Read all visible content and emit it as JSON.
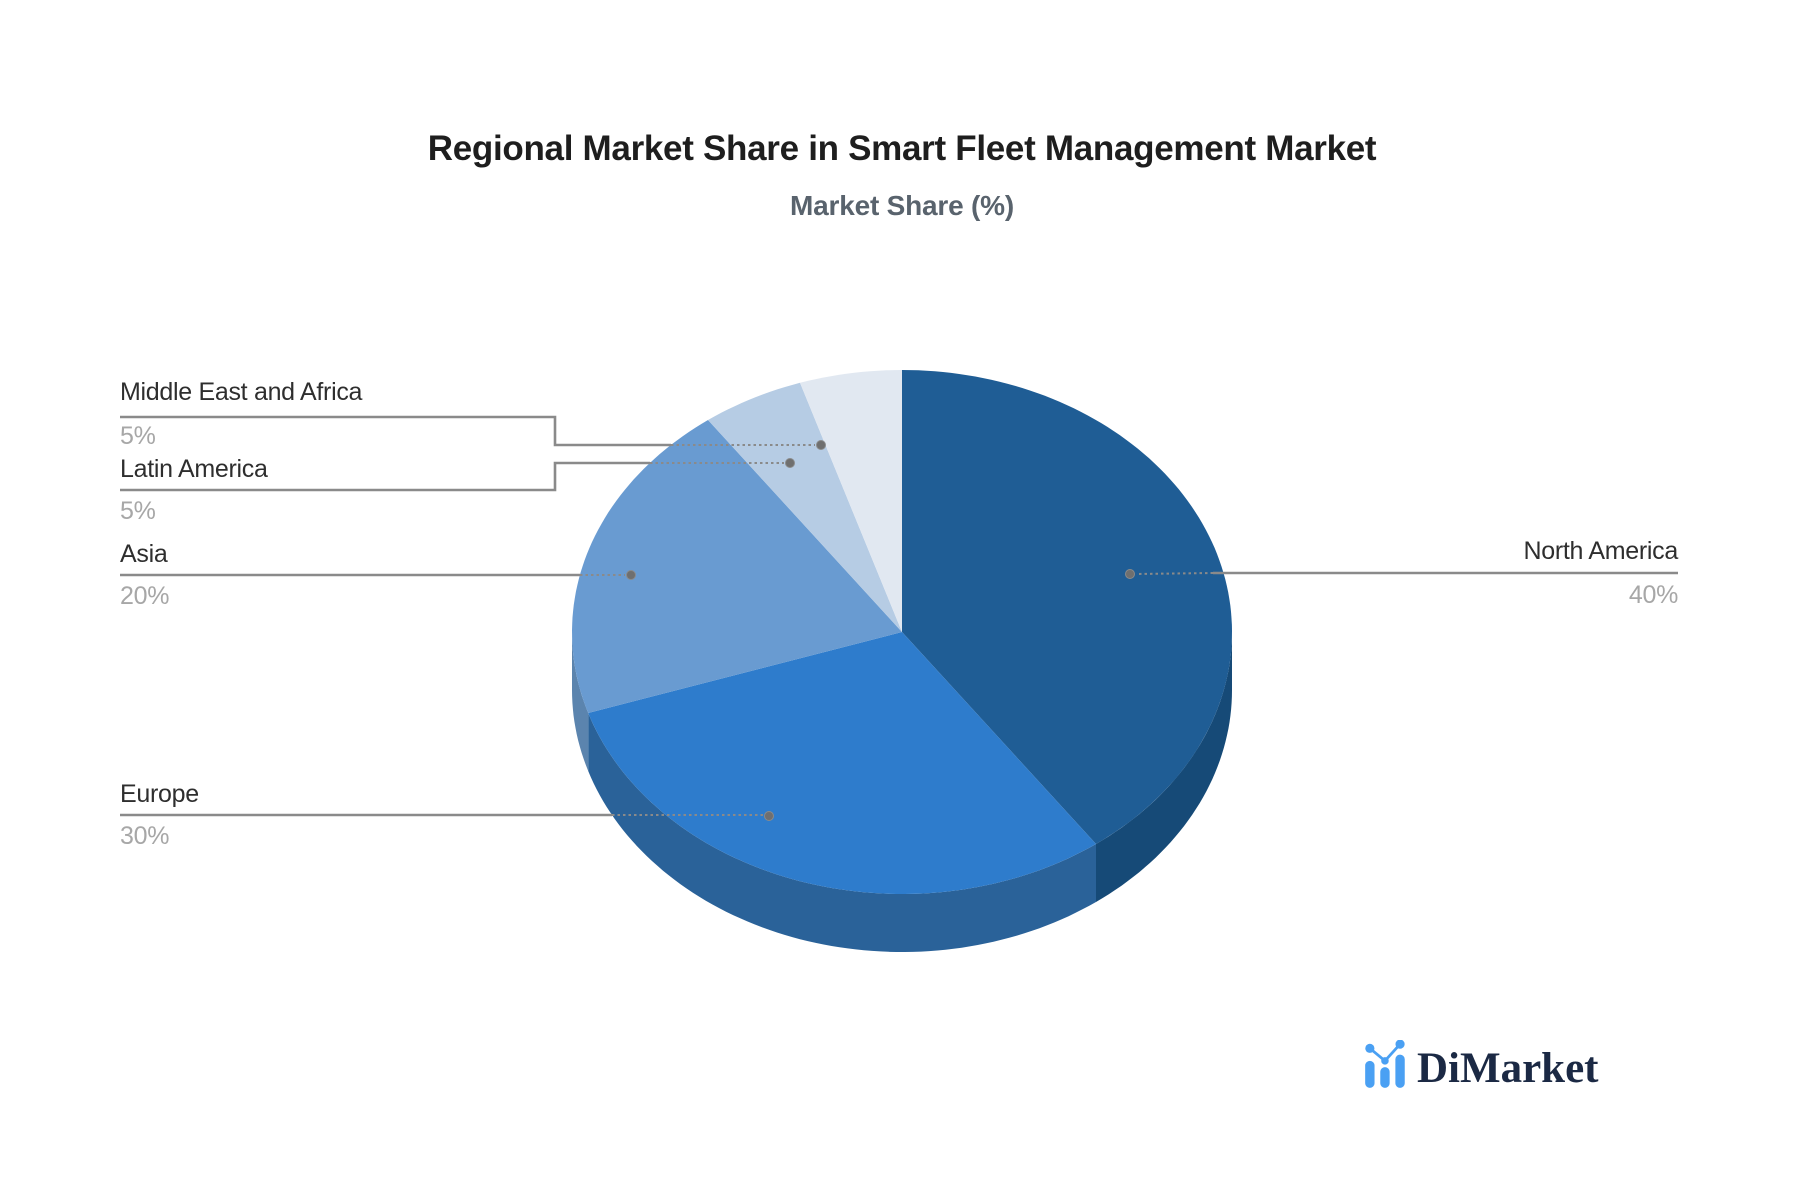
{
  "title": "Regional Market Share in Smart Fleet Management Market",
  "subtitle": "Market Share (%)",
  "logo": {
    "text": "DiMarket",
    "icon": "bar-chart-spark-icon",
    "icon_color": "#4aa0f3",
    "text_color": "#1b2944"
  },
  "style": {
    "background": "#ffffff",
    "title_color": "#1e1e1e",
    "subtitle_color": "#59636d",
    "label_color": "#2e2e2e",
    "percent_color": "#a7a7a7",
    "leader_line_color": "#8a8a8a",
    "leader_dot_color": "#6f6f6f"
  },
  "chart_data": {
    "type": "pie",
    "style_3d": true,
    "title": "Regional Market Share in Smart Fleet Management Market",
    "subtitle": "Market Share (%)",
    "unit": "%",
    "start_angle_deg": 0,
    "direction": "clockwise",
    "legend_position": "callout-labels",
    "slices": [
      {
        "label": "North America",
        "value": 40,
        "display": "40%",
        "color": "#1f5d95",
        "side_color": "#164a77"
      },
      {
        "label": "Europe",
        "value": 30,
        "display": "30%",
        "color": "#2e7ccc",
        "side_color": "#2a6299"
      },
      {
        "label": "Asia",
        "value": 20,
        "display": "20%",
        "color": "#699bd1",
        "side_color": "#5b84ae"
      },
      {
        "label": "Latin America",
        "value": 5,
        "display": "5%",
        "color": "#b6cce4",
        "side_color": "#9fb8d4"
      },
      {
        "label": "Middle East and Africa",
        "value": 5,
        "display": "5%",
        "color": "#e1e8f1",
        "side_color": "#c8d4e3"
      }
    ]
  }
}
